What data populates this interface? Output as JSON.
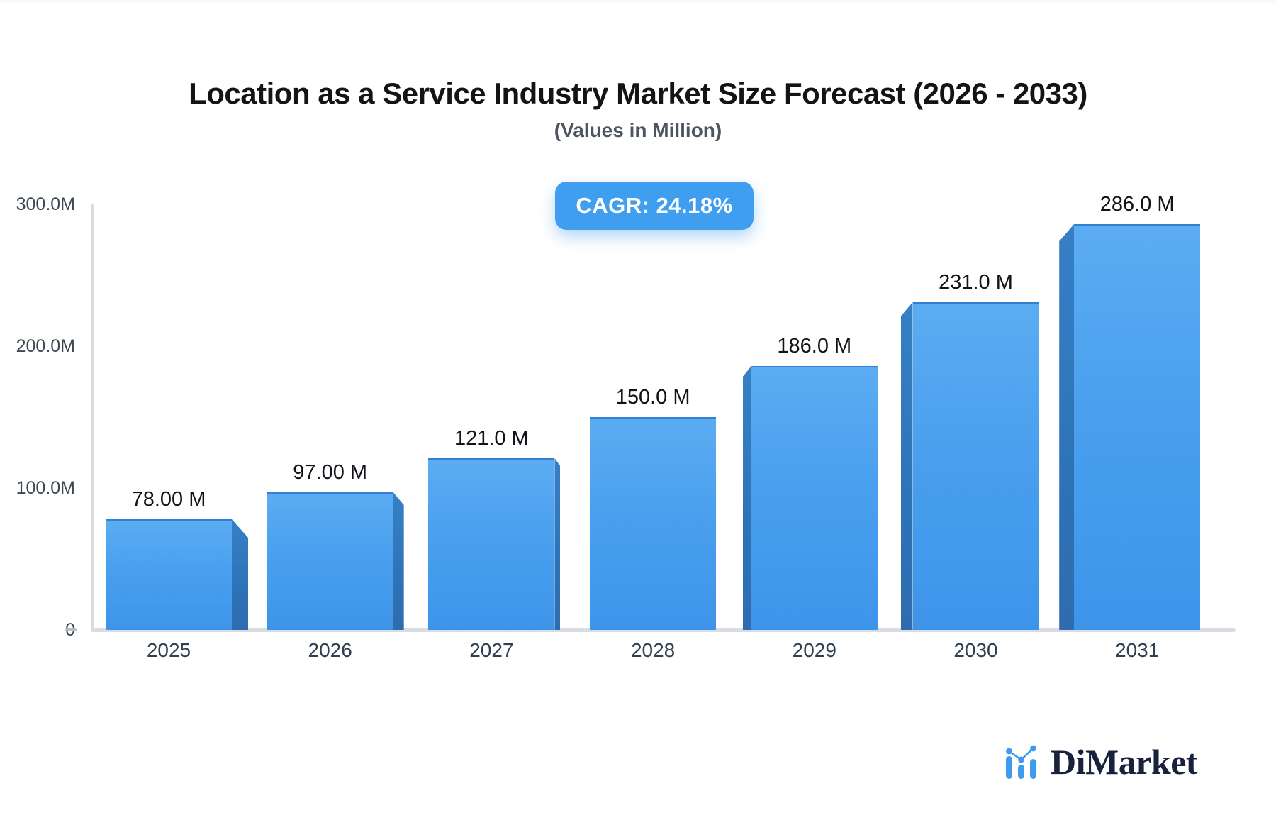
{
  "header": {
    "title": "Location as a Service Industry Market Size Forecast (2026 - 2033)",
    "subtitle": "(Values in Million)"
  },
  "badge": {
    "label": "CAGR: 24.18%",
    "bg": "#3f9eef"
  },
  "chart_data": {
    "type": "bar",
    "title": "Location as a Service Industry Market Size Forecast (2026 - 2033)",
    "subtitle": "(Values in Million)",
    "unit": "Million",
    "categories": [
      "2025",
      "2026",
      "2027",
      "2028",
      "2029",
      "2030",
      "2031"
    ],
    "values": [
      78,
      97,
      121,
      150,
      186,
      231,
      286
    ],
    "value_labels": [
      "78.00 M",
      "97.00 M",
      "121.0 M",
      "150.0 M",
      "186.0 M",
      "231.0 M",
      "286.0 M"
    ],
    "xlabel": "",
    "ylabel": "",
    "ylim": [
      0,
      300
    ],
    "yticks": [
      {
        "value": 0,
        "label": "0"
      },
      {
        "value": 100,
        "label": "100.0M"
      },
      {
        "value": 200,
        "label": "200.0M"
      },
      {
        "value": 300,
        "label": "300.0M"
      }
    ],
    "grid": false,
    "legend": false,
    "bar_style_3d": {
      "face_top_color": "#5bacf2",
      "face_bottom_color": "#3e94e9",
      "side_color": "#2e73b8",
      "depths": [
        23,
        15,
        8,
        0,
        12,
        17,
        21
      ],
      "directions": [
        "right",
        "right",
        "right",
        "none",
        "left",
        "left",
        "left"
      ]
    },
    "cagr_annotation": "CAGR: 24.18%"
  },
  "footer": {
    "brand": "DiMarket",
    "brand_color": "#18223c",
    "icon_color": "#3f9bf0"
  }
}
